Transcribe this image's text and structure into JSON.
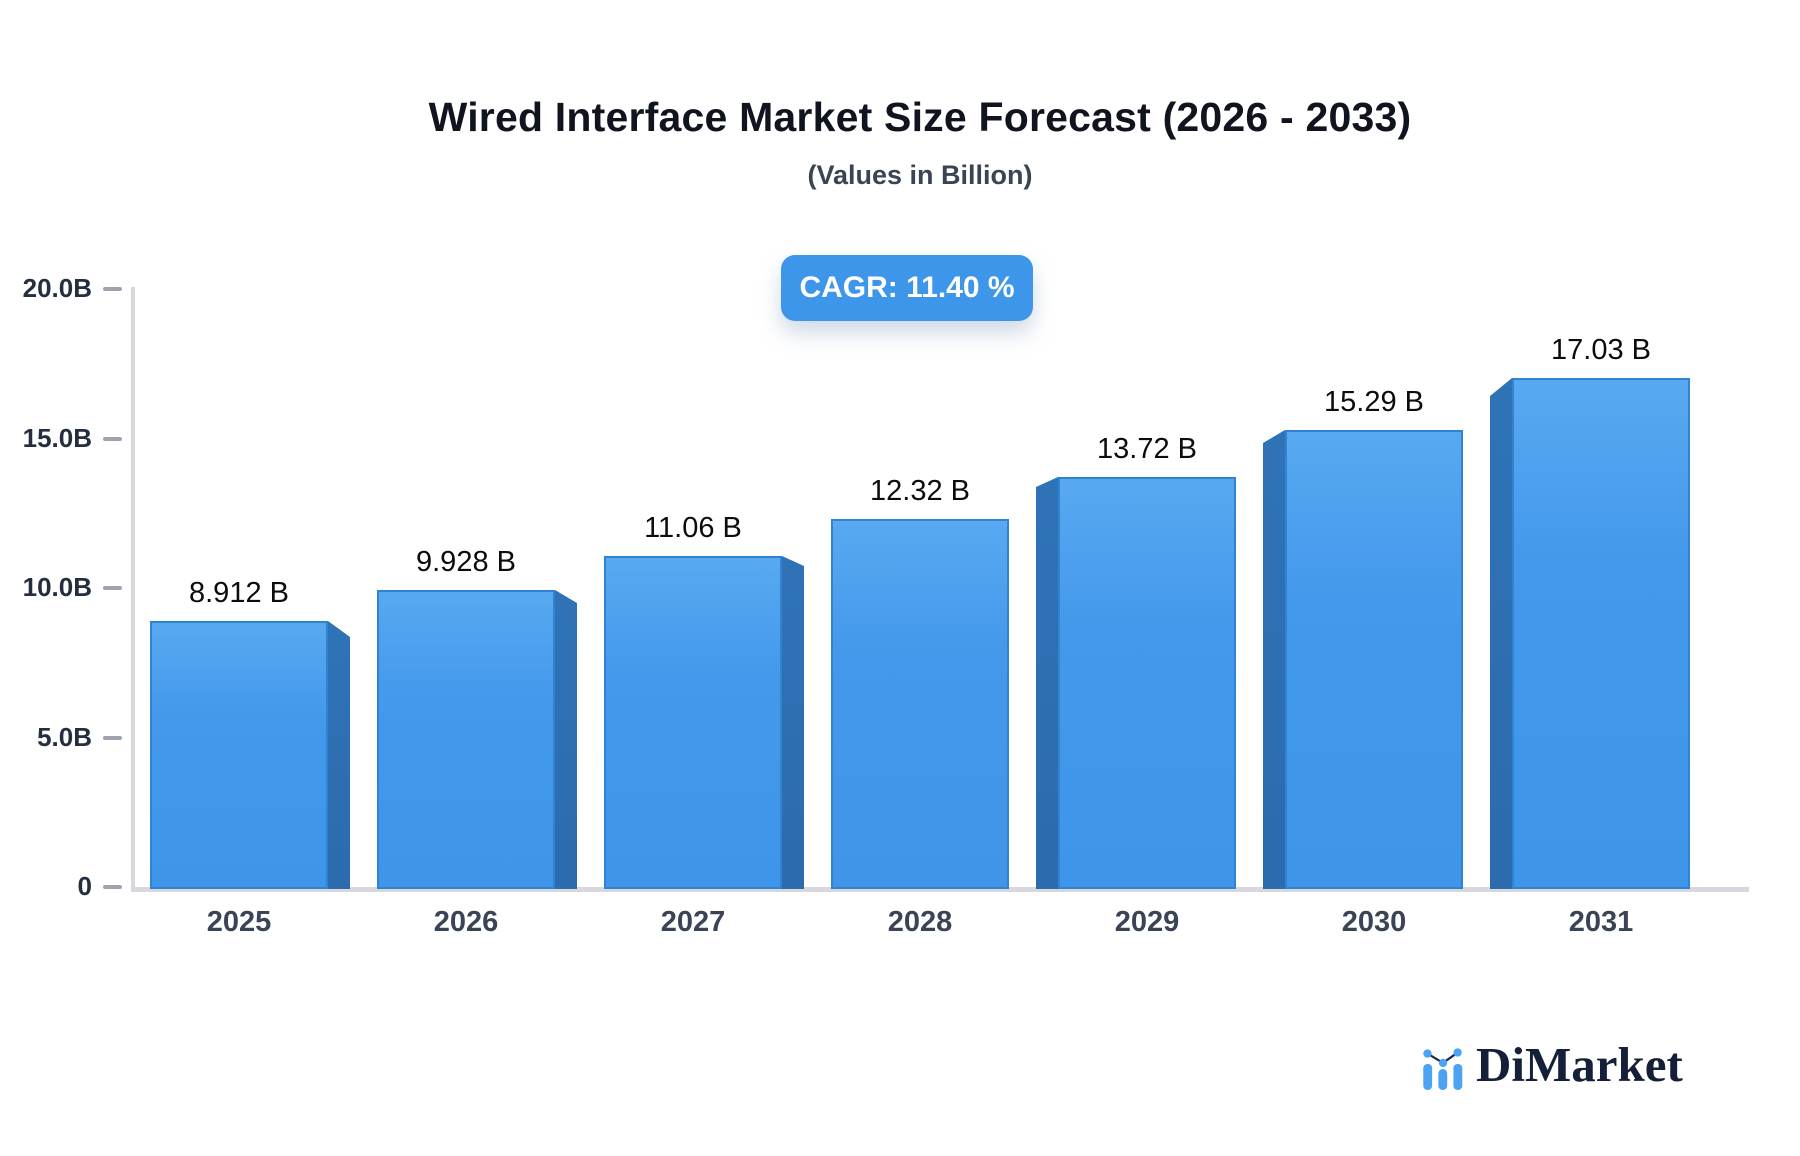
{
  "header": {
    "title": "Wired Interface Market Size Forecast (2026 - 2033)",
    "subtitle": "(Values in Billion)",
    "cagr_label": "CAGR: 11.40 %"
  },
  "chart_data": {
    "type": "bar",
    "title": "Wired Interface Market Size Forecast (2026 - 2033)",
    "subtitle": "(Values in Billion)",
    "categories": [
      "2025",
      "2026",
      "2027",
      "2028",
      "2029",
      "2030",
      "2031"
    ],
    "values": [
      8.912,
      9.928,
      11.06,
      12.32,
      13.72,
      15.29,
      17.03
    ],
    "value_labels": [
      "8.912 B",
      "9.928 B",
      "11.06 B",
      "12.32 B",
      "13.72 B",
      "15.29 B",
      "17.03 B"
    ],
    "unit": "Billion",
    "cagr": "11.40 %",
    "ylim": [
      0,
      20
    ],
    "yticks": [
      0,
      5,
      10,
      15,
      20
    ],
    "ytick_labels": [
      "0",
      "5.0B",
      "10.0B",
      "15.0B",
      "20.0B"
    ],
    "grid": false,
    "legend": false,
    "bar_color": "#459aeb",
    "bar_side_color": "#2d6eb0",
    "accent_color": "#3d96ea",
    "axis_color": "#d7d8de",
    "label_color": "#252e3e"
  },
  "footer": {
    "brand": "DiMarket",
    "logo_icon": "bar-chart-logo-icon"
  }
}
